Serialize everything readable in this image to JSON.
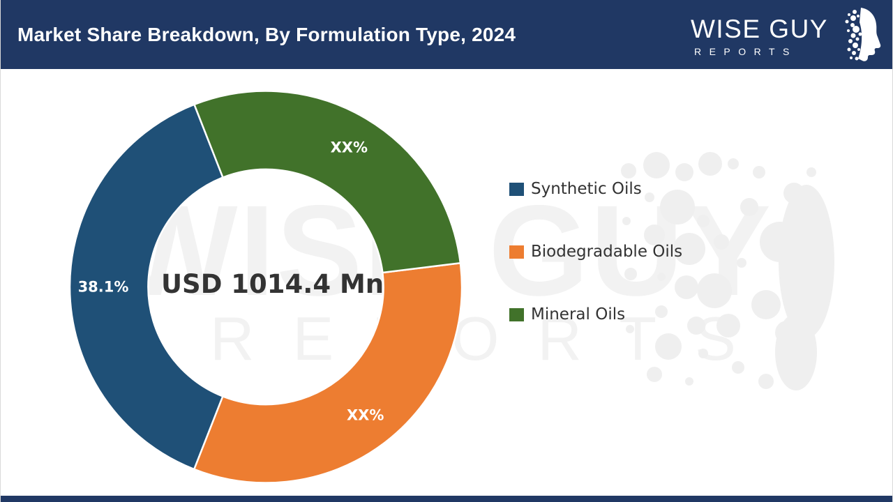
{
  "header": {
    "title": "Market Share Breakdown, By Formulation Type, 2024",
    "background": "#203864"
  },
  "logo": {
    "line1": "WISE GUY",
    "line2": "REPORTS"
  },
  "watermark": {
    "line1": "WISE GUY",
    "line2": "REPORTS"
  },
  "chart_data": {
    "type": "pie",
    "subtype": "donut",
    "title": "Market Share Breakdown, By Formulation Type, 2024",
    "center_label": "USD 1014.4 Mn",
    "start_angle_deg": 111.4,
    "direction": "counterclockwise",
    "inner_radius_ratio": 0.6,
    "legend_position": "right",
    "segments": [
      {
        "label": "Synthetic Oils",
        "value_pct": 38.1,
        "display_label": "38.1%",
        "color": "#1F5077"
      },
      {
        "label": "Biodegradable Oils",
        "value_pct": 32.9,
        "display_label": "XX%",
        "color": "#ED7D31"
      },
      {
        "label": "Mineral Oils",
        "value_pct": 29.0,
        "display_label": "XX%",
        "color": "#41722A"
      }
    ]
  },
  "footer": {
    "background": "#203864"
  }
}
